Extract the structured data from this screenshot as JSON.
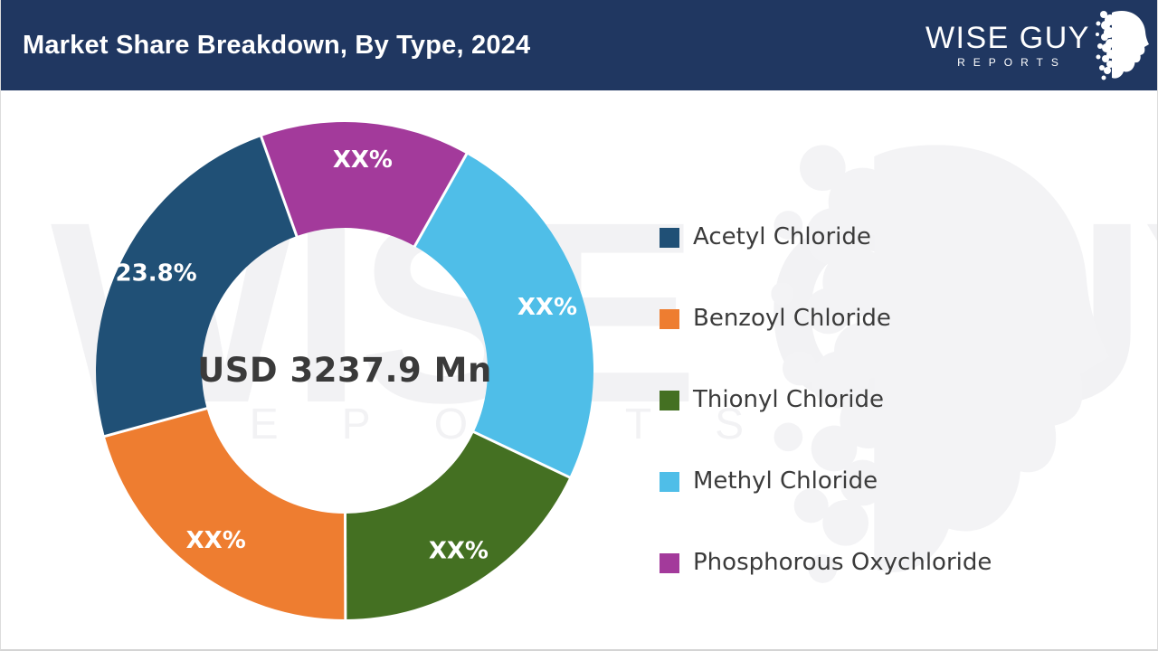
{
  "header": {
    "title": "Market Share Breakdown, By Type, 2024",
    "logo": {
      "name": "WISE GUY",
      "sub": "REPORTS"
    }
  },
  "watermark": {
    "big": "WISE GUY",
    "reports": "REPORTS"
  },
  "chart_data": {
    "type": "pie",
    "subtype": "donut",
    "title": "Market Share Breakdown, By Type, 2024",
    "center_label": "USD 3237.9 Mn",
    "start_angle_deg": 254.7,
    "series": [
      {
        "name": "Acetyl Chloride",
        "label": "23.8%",
        "value_pct": 23.8,
        "color": "#205076"
      },
      {
        "name": "Phosphorous Oxychloride",
        "label": "XX%",
        "value_pct": 13.6,
        "color": "#A33A9B"
      },
      {
        "name": "Methyl Chloride",
        "label": "XX%",
        "value_pct": 23.9,
        "color": "#4FBEE8"
      },
      {
        "name": "Thionyl Chloride",
        "label": "XX%",
        "value_pct": 17.9,
        "color": "#447022"
      },
      {
        "name": "Benzoyl Chloride",
        "label": "XX%",
        "value_pct": 20.8,
        "color": "#EE7D30"
      }
    ],
    "legend_position": "right"
  },
  "legend": {
    "items": [
      {
        "label": "Acetyl Chloride",
        "color": "#205076"
      },
      {
        "label": "Benzoyl Chloride",
        "color": "#EE7D30"
      },
      {
        "label": "Thionyl Chloride",
        "color": "#447022"
      },
      {
        "label": "Methyl Chloride",
        "color": "#4FBEE8"
      },
      {
        "label": "Phosphorous Oxychloride",
        "color": "#A33A9B"
      }
    ]
  },
  "colors": {
    "header_bg": "#203761",
    "watermark": "#f2f2f4",
    "center_text": "#3a3a3a",
    "separator": "#ffffff"
  }
}
